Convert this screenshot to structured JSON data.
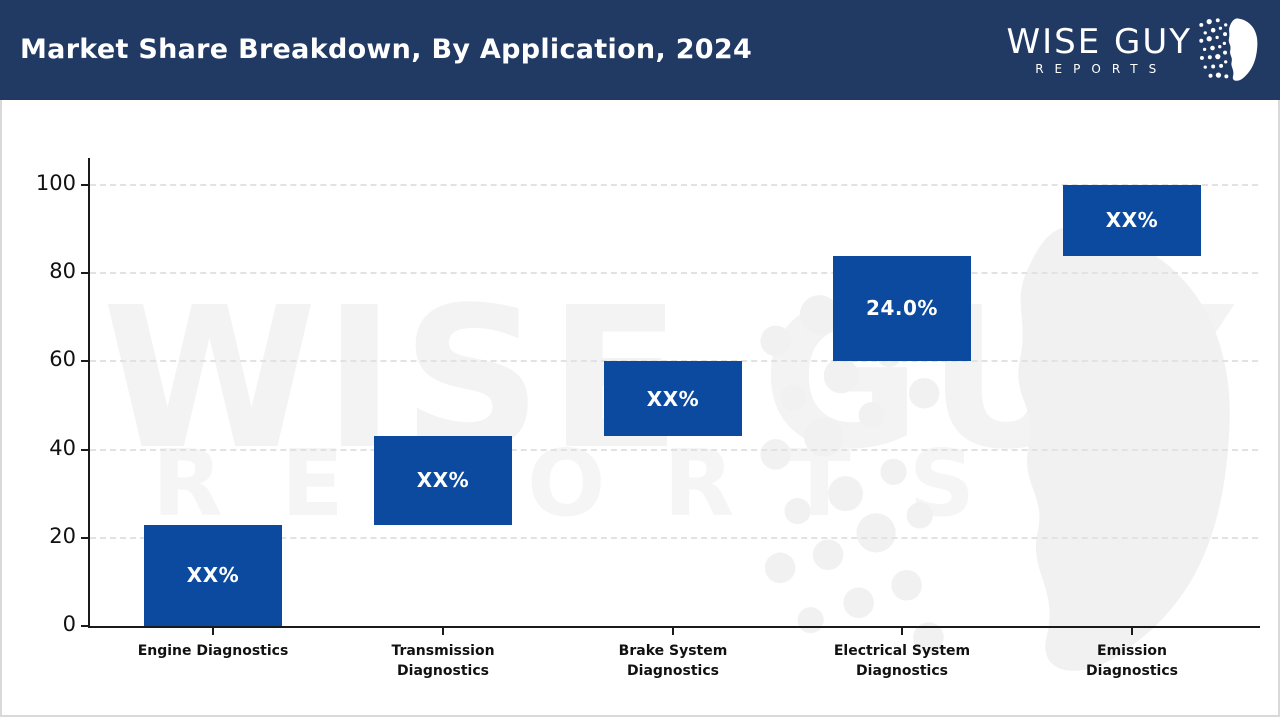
{
  "header": {
    "title": "Market Share Breakdown, By Application, 2024",
    "logo": {
      "line1": "WISE GUY",
      "line2": "REPORTS"
    }
  },
  "watermark": {
    "line1": "WISE GUY",
    "line2": "REPORTS"
  },
  "colors": {
    "header_bg": "#213A64",
    "bar": "#0B4A9E",
    "bar_label": "#ffffff",
    "gridline": "#e2e2e2",
    "axis": "#1a1a1a",
    "card_border": "#d9d9d9",
    "watermark": "#f3f3f3"
  },
  "chart_data": {
    "type": "bar",
    "subtype": "waterfall",
    "title": "Market Share Breakdown, By Application, 2024",
    "xlabel": "",
    "ylabel": "",
    "ylim": [
      0,
      105
    ],
    "yticks": [
      0,
      20,
      40,
      60,
      80,
      100
    ],
    "grid": "horizontal-dashed",
    "legend": "none",
    "categories": [
      "Engine Diagnostics",
      "Transmission Diagnostics",
      "Brake System Diagnostics",
      "Electrical System Diagnostics",
      "Emission Diagnostics"
    ],
    "segments": [
      {
        "category": "Engine Diagnostics",
        "display": "Engine Diagnostics",
        "start": 0,
        "end": 23,
        "value": 23,
        "label": "XX%"
      },
      {
        "category": "Transmission Diagnostics",
        "display": "Transmission\nDiagnostics",
        "start": 23,
        "end": 43,
        "value": 20,
        "label": "XX%"
      },
      {
        "category": "Brake System Diagnostics",
        "display": "Brake System\nDiagnostics",
        "start": 43,
        "end": 60,
        "value": 17,
        "label": "XX%"
      },
      {
        "category": "Electrical System Diagnostics",
        "display": "Electrical System\nDiagnostics",
        "start": 60,
        "end": 84,
        "value": 24,
        "label": "24.0%"
      },
      {
        "category": "Emission Diagnostics",
        "display": "Emission\nDiagnostics",
        "start": 84,
        "end": 100,
        "value": 16,
        "label": "XX%"
      }
    ]
  }
}
